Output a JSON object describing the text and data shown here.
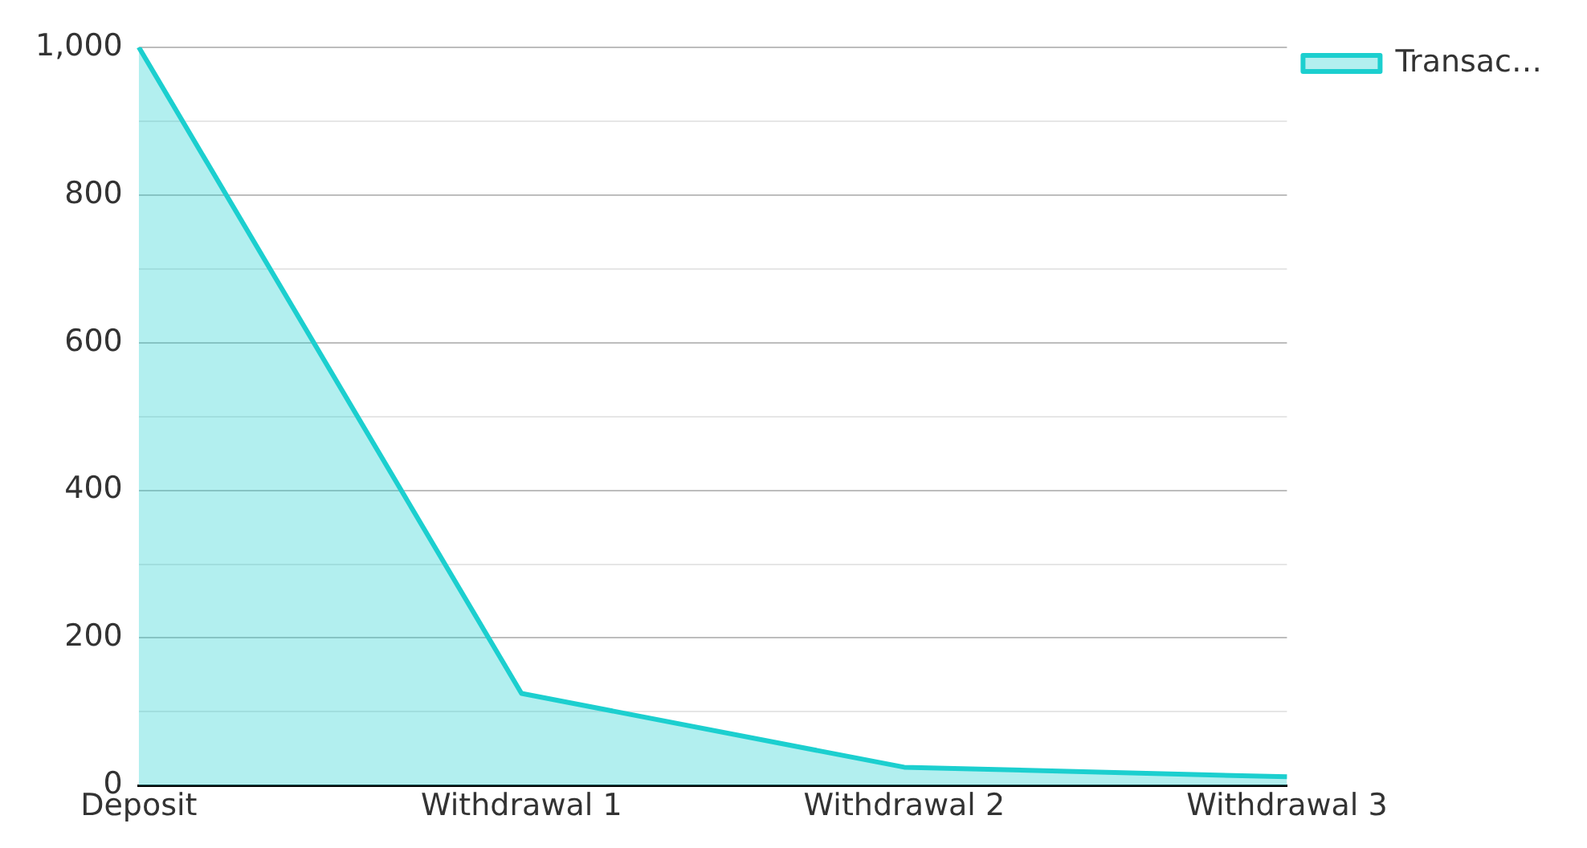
{
  "chart_data": {
    "type": "area",
    "categories": [
      "Deposit",
      "Withdrawal 1",
      "Withdrawal 2",
      "Withdrawal 3"
    ],
    "series": [
      {
        "name": "Transac…",
        "color": "#1ccfcf",
        "values": [
          1000,
          125,
          25,
          12
        ]
      }
    ],
    "ylim": [
      0,
      1000
    ],
    "yticks": [
      0,
      {
        "value": 100,
        "label": null
      },
      200,
      {
        "value": 300,
        "label": null
      },
      400,
      {
        "value": 500,
        "label": null
      },
      600,
      {
        "value": 700,
        "label": null
      },
      800,
      {
        "value": 900,
        "label": null
      },
      {
        "value": 1000,
        "label": "1,000"
      }
    ],
    "grid": "y",
    "legend": "top right"
  }
}
